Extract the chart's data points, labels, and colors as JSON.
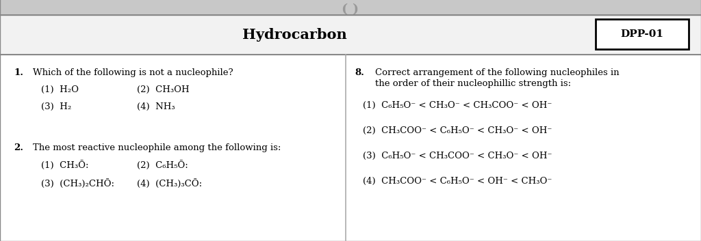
{
  "title": "Hydrocarbon",
  "dpp_label": "DPP-01",
  "bg_color": "#ffffff",
  "title_fontsize": 15,
  "body_fontsize": 9.5,
  "q1_num": "1.",
  "q1_text": "Which of the following is not a nucleophile?",
  "q1_opt1a": "(1)  H₂O",
  "q1_opt1b": "(2)  CH₃OH",
  "q1_opt2a": "(3)  H₂",
  "q1_opt2b": "(4)  NH₃",
  "q2_num": "2.",
  "q2_text": "The most reactive nucleophile among the following is:",
  "q2_opt1a": "(1)  CH₃Ō:",
  "q2_opt1b": "(2)  C₆H₅Ō:",
  "q2_opt2a": "(3)  (CH₃)₂CHŌ:",
  "q2_opt2b": "(4)  (CH₃)₃CŌ:",
  "q8_num": "8.",
  "q8_line1": "Correct arrangement of the following nucleophiles in",
  "q8_line2": "the order of their nucleophillic strength is:",
  "q8_opt1": "(1)  C₆H₅O⁻ < CH₃O⁻ < CH₃COO⁻ < OH⁻",
  "q8_opt2": "(2)  CH₃COO⁻ < C₆H₅O⁻ < CH₃O⁻ < OH⁻",
  "q8_opt3": "(3)  C₆H₅O⁻ < CH₃COO⁻ < CH₃O⁻ < OH⁻",
  "q8_opt4": "(4)  CH₃COO⁻ < C₆H₅O⁻ < OH⁻ < CH₃O⁻",
  "top_strip_color": "#c8c8c8",
  "title_bar_color": "#f2f2f2",
  "line_color": "#888888",
  "divider_color": "#aaaaaa"
}
